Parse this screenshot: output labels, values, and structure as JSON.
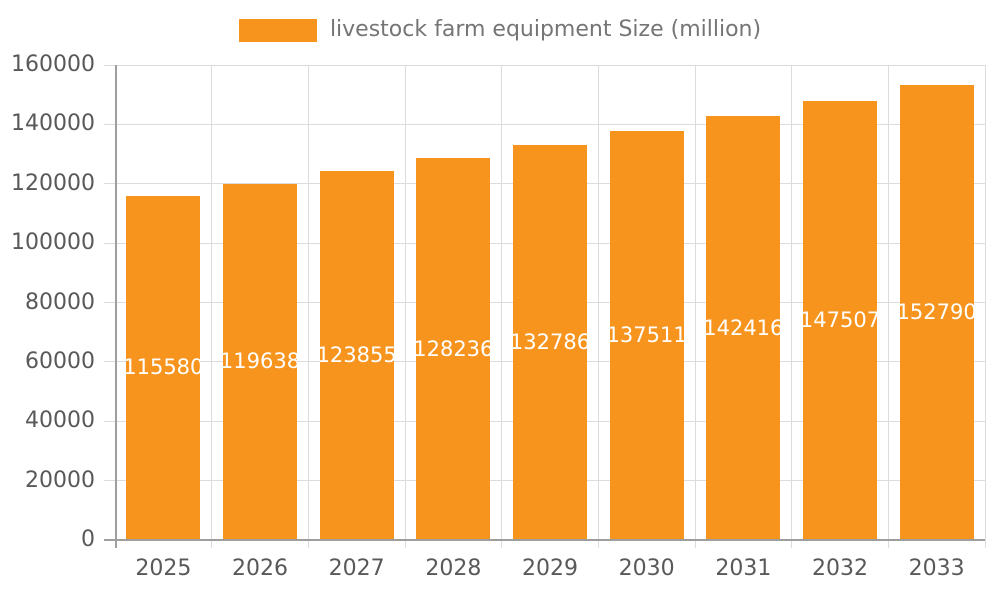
{
  "legend": {
    "label": "livestock farm equipment Size (million)",
    "swatch_color": "#F7941E"
  },
  "chart_data": {
    "type": "bar",
    "title": "",
    "xlabel": "",
    "ylabel": "",
    "categories": [
      "2025",
      "2026",
      "2027",
      "2028",
      "2029",
      "2030",
      "2031",
      "2032",
      "2033"
    ],
    "series": [
      {
        "name": "livestock farm equipment Size (million)",
        "values": [
          115580,
          119638,
          123855,
          128236,
          132786,
          137511,
          142416,
          147507,
          152790
        ]
      }
    ],
    "ylim": [
      0,
      160000
    ],
    "yticks": [
      0,
      20000,
      40000,
      60000,
      80000,
      100000,
      120000,
      140000,
      160000
    ],
    "grid": true,
    "legend_position": "top",
    "bar_color": "#F7941E",
    "bar_value_label_color": "#FFFFFF",
    "axis_label_color": "#595959",
    "gridline_color": "#DCDCDC",
    "axis_line_color": "#9E9E9E"
  }
}
